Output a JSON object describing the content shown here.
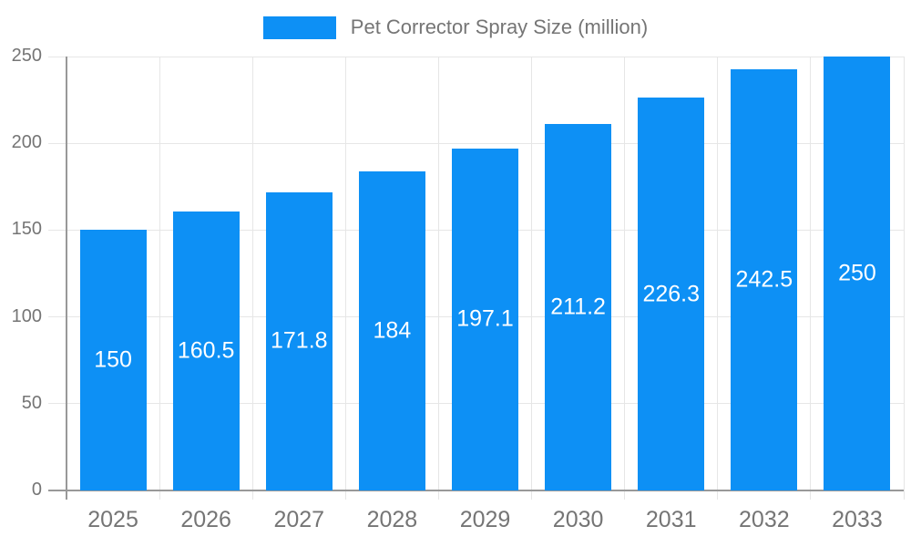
{
  "chart_data": {
    "type": "bar",
    "title": "Pet Corrector Spray Size (million)",
    "series_name": "Pet Corrector Spray Size (million)",
    "categories": [
      "2025",
      "2026",
      "2027",
      "2028",
      "2029",
      "2030",
      "2031",
      "2032",
      "2033"
    ],
    "values": [
      150,
      160.5,
      171.8,
      184,
      197.1,
      211.2,
      226.3,
      242.5,
      250
    ],
    "value_labels": [
      "150",
      "160.5",
      "171.8",
      "184",
      "197.1",
      "211.2",
      "226.3",
      "242.5",
      "250"
    ],
    "xlabel": "",
    "ylabel": "",
    "ylim": [
      0,
      250
    ],
    "yticks": [
      0,
      50,
      100,
      150,
      200,
      250
    ],
    "grid": true,
    "legend_position": "top-center",
    "colors": {
      "bar": "#0d90f5",
      "grid": "#e6e6e6",
      "axis": "#999999",
      "tick_label": "#757575",
      "value_label": "#ffffff",
      "background": "#ffffff"
    }
  }
}
